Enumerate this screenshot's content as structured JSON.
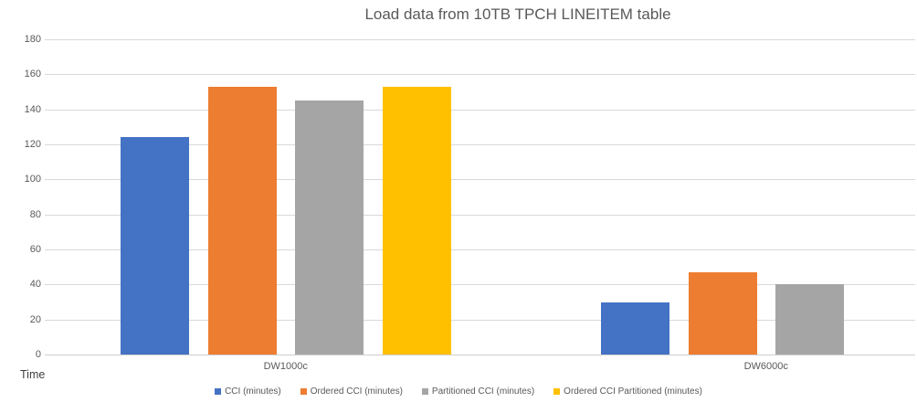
{
  "chart_data": {
    "type": "bar",
    "title": "Load data from 10TB TPCH LINEITEM table",
    "categories": [
      "DW1000c",
      "DW6000c"
    ],
    "series": [
      {
        "name": "CCI (minutes)",
        "color": "#4472C4",
        "values": [
          124,
          30
        ]
      },
      {
        "name": "Ordered CCI (minutes)",
        "color": "#ED7D31",
        "values": [
          153,
          47
        ]
      },
      {
        "name": "Partitioned CCI (minutes)",
        "color": "#A5A5A5",
        "values": [
          145,
          40
        ]
      },
      {
        "name": "Ordered CCI Partitioned (minutes)",
        "color": "#FFC000",
        "values": [
          153,
          null
        ]
      }
    ],
    "xlabel": "",
    "ylabel": "Time",
    "ylim": [
      0,
      180
    ],
    "ytick_step": 20,
    "grid": true,
    "legend_position": "bottom",
    "colors": {
      "title_text": "#595959",
      "axis_text": "#595959",
      "gridline": "#D9D9D9",
      "background": "#FFFFFF"
    }
  }
}
